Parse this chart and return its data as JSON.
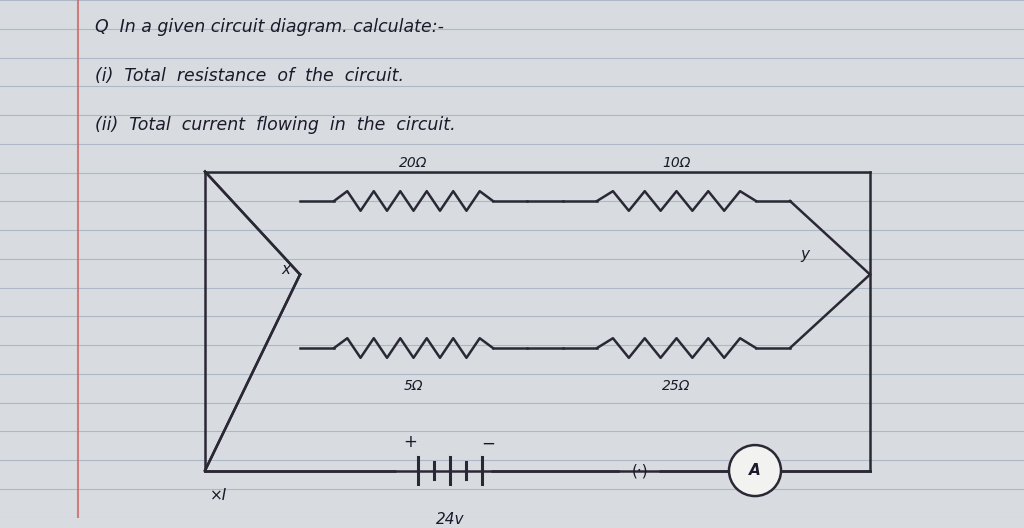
{
  "page_bg": "#d8dce0",
  "paper_bg": "#f2f2f0",
  "ruled_line_color": "#9aaabb",
  "margin_line_color": "#cc6666",
  "line_color": "#2a2835",
  "text_color": "#1a1a2a",
  "title_lines": [
    "Q  In a given circuit diagram. calculate:-",
    "(i)  Total  resistance  of  the  circuit.",
    "(ii)  Total  current  flowing  in  the  circuit."
  ],
  "battery_label": "24v",
  "ammeter_label": "A",
  "current_label": "I",
  "res_labels": [
    "20Ω",
    "10Ω",
    "5Ω",
    "25Ω"
  ],
  "node_labels": [
    "x",
    "y"
  ]
}
